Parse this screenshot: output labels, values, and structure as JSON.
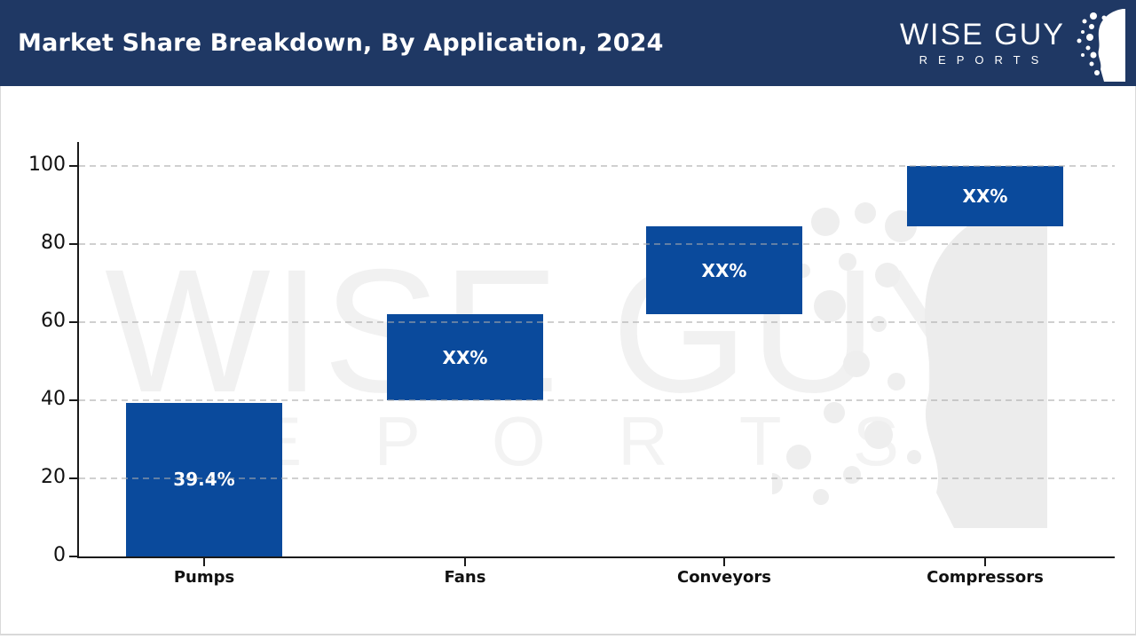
{
  "header": {
    "title": "Market Share Breakdown, By Application, 2024",
    "bg_color": "#1f3864",
    "logo_line1": "WISE GUY",
    "logo_line2": "REPORTS"
  },
  "watermark": {
    "line1": "WISE GUY",
    "line2": "R E P O R T S"
  },
  "chart_data": {
    "type": "bar",
    "subtype": "waterfall",
    "title": "Market Share Breakdown, By Application, 2024",
    "categories": [
      "Pumps",
      "Fans",
      "Conveyors",
      "Compressors"
    ],
    "segments": [
      {
        "category": "Pumps",
        "start": 0,
        "end": 39.4,
        "label": "39.4%"
      },
      {
        "category": "Fans",
        "start": 40,
        "end": 62,
        "label": "XX%"
      },
      {
        "category": "Conveyors",
        "start": 62,
        "end": 84.5,
        "label": "XX%"
      },
      {
        "category": "Compressors",
        "start": 84.5,
        "end": 100,
        "label": "XX%"
      }
    ],
    "xlabel": "",
    "ylabel": "",
    "ylim": [
      0,
      100
    ],
    "yticks": [
      0,
      20,
      40,
      60,
      80,
      100
    ],
    "grid": "horizontal-dashed",
    "legend": "none",
    "bar_color": "#0a4a9c",
    "bar_label_color": "#ffffff",
    "axis_color": "#1a1a1a"
  }
}
